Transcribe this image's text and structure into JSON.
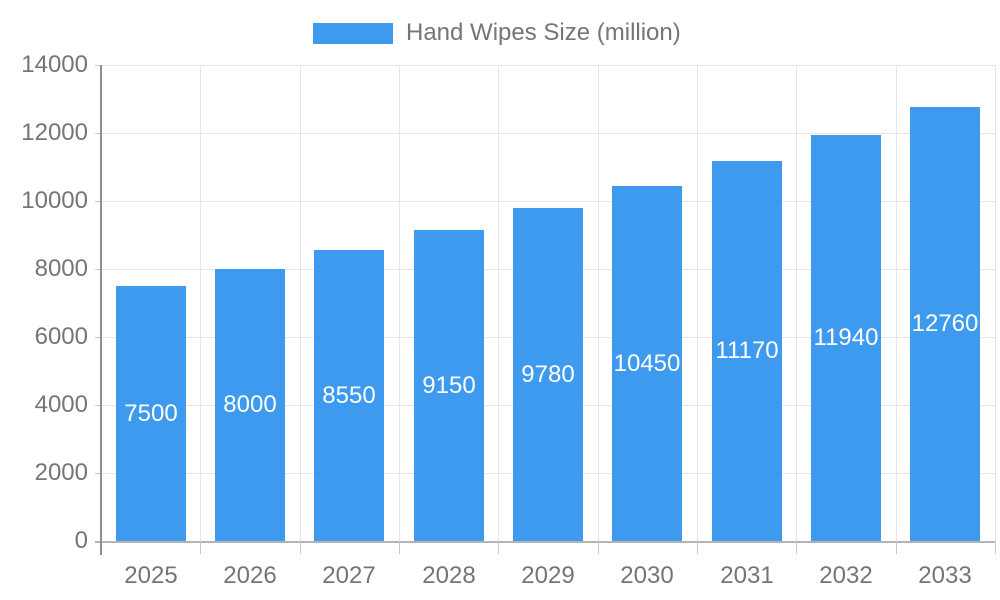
{
  "legend": {
    "label": "Hand Wipes Size (million)"
  },
  "colors": {
    "bar": "#3E9AEF",
    "axis_text": "#757575",
    "value_text": "#FFFFFF",
    "gridline": "#E6E6E6",
    "tick": "#C9C9C9",
    "axis_line": "#8F8F8F",
    "baseline": "#B3B3B3",
    "background": "#FFFFFF"
  },
  "chart_data": {
    "type": "bar",
    "title": "",
    "legend_entries": [
      "Hand Wipes Size (million)"
    ],
    "legend_position": "top",
    "categories": [
      "2025",
      "2026",
      "2027",
      "2028",
      "2029",
      "2030",
      "2031",
      "2032",
      "2033"
    ],
    "series": [
      {
        "name": "Hand Wipes Size (million)",
        "values": [
          7500,
          8000,
          8550,
          9150,
          9780,
          10450,
          11170,
          11940,
          12760
        ]
      }
    ],
    "xlabel": "",
    "ylabel": "",
    "y_ticks": [
      0,
      2000,
      4000,
      6000,
      8000,
      10000,
      12000,
      14000
    ],
    "ylim": [
      0,
      14000
    ],
    "grid": true,
    "value_labels": "inside-center-white"
  }
}
